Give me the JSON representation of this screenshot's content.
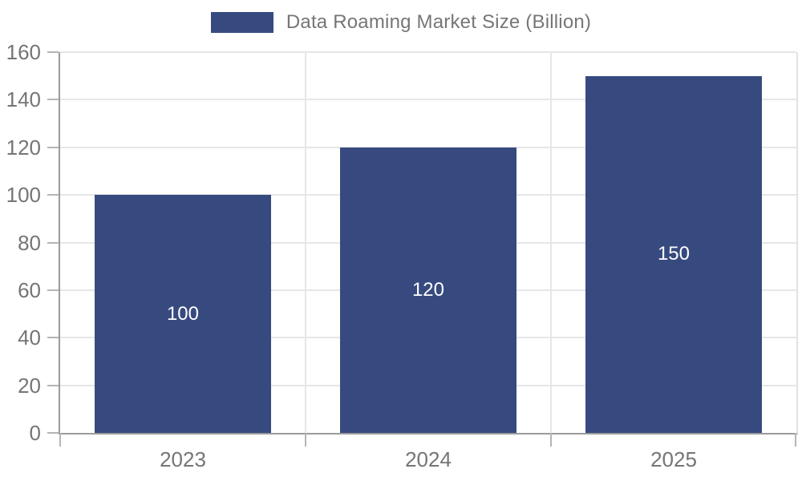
{
  "legend": {
    "label": "Data Roaming Market Size (Billion)"
  },
  "chart_data": {
    "type": "bar",
    "title": "Data Roaming Market Size (Billion)",
    "categories": [
      "2023",
      "2024",
      "2025"
    ],
    "series": [
      {
        "name": "Data Roaming Market Size (Billion)",
        "values": [
          100,
          120,
          150
        ]
      }
    ],
    "data_labels": [
      "100",
      "120",
      "150"
    ],
    "ylim": [
      0,
      160
    ],
    "yticks": [
      0,
      20,
      40,
      60,
      80,
      100,
      120,
      140,
      160
    ],
    "grid": true,
    "legend_position": "top-center",
    "colors": {
      "bar": "#374a80",
      "bar_label": "#ffffff",
      "axis_line": "#9b9b9b",
      "tick_mark": "#b5b5b5",
      "grid_line": "#e6e6e6",
      "tick_text": "#757575",
      "legend_text": "#767676"
    }
  }
}
